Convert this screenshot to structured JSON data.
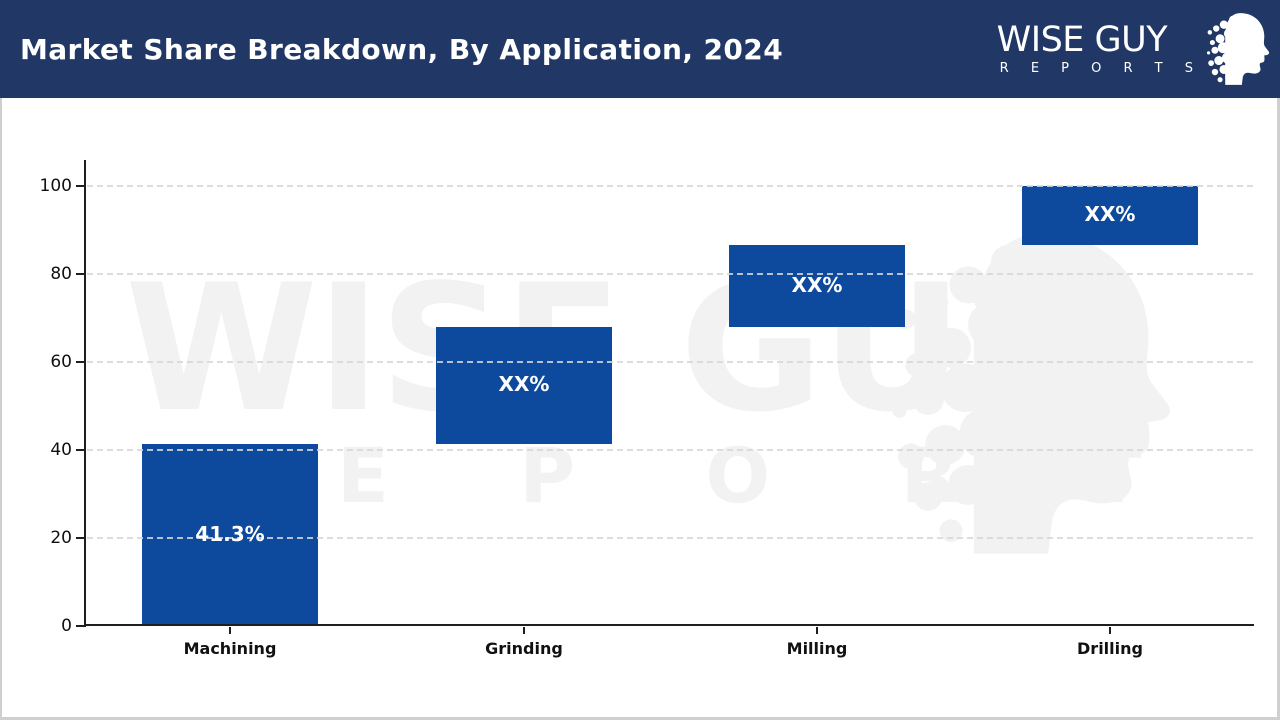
{
  "header": {
    "title": "Market Share Breakdown, By Application, 2024",
    "logo": {
      "line1": "WISE GUY",
      "line2": "R E P O R T S"
    }
  },
  "watermark": {
    "line1": "WISE GUY",
    "line2": "R E P O R T S"
  },
  "colors": {
    "header_bg": "#213765",
    "bar": "#0d4a9e",
    "bar_label": "#ffffff",
    "grid": "#d7d7d7",
    "axis": "#1f1f1f",
    "watermark": "#f2f2f2"
  },
  "chart_data": {
    "type": "bar",
    "subtype": "waterfall",
    "title": "Market Share Breakdown, By Application, 2024",
    "categories": [
      "Machining",
      "Grinding",
      "Milling",
      "Drilling"
    ],
    "segments": [
      {
        "category": "Machining",
        "start": 0,
        "end": 41.3,
        "label": "41.3%"
      },
      {
        "category": "Grinding",
        "start": 41.3,
        "end": 67.9,
        "label": "XX%"
      },
      {
        "category": "Milling",
        "start": 67.9,
        "end": 86.4,
        "label": "XX%"
      },
      {
        "category": "Drilling",
        "start": 86.4,
        "end": 100,
        "label": "XX%"
      }
    ],
    "yticks": [
      0,
      20,
      40,
      60,
      80,
      100
    ],
    "ylim": [
      0,
      105
    ],
    "xlabel": "",
    "ylabel": "",
    "grid": "horizontal-dashed",
    "legend": "none"
  }
}
